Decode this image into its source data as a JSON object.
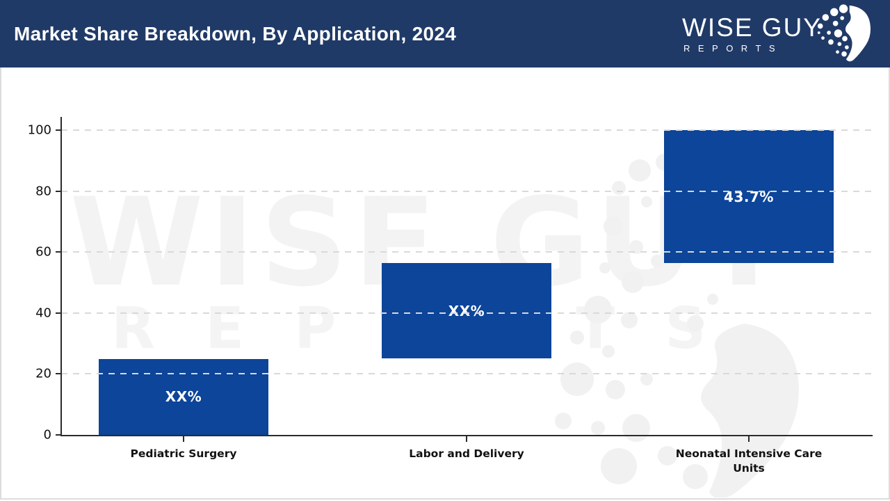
{
  "header": {
    "title": "Market Share Breakdown, By Application, 2024",
    "logo": {
      "line1": "WISE GUY",
      "line2": "REPORTS"
    }
  },
  "watermark": {
    "line1": "WISE GUY",
    "line2": "REPORTS"
  },
  "colors": {
    "header_bg": "#203a68",
    "bar": "#0c4599",
    "grid": "#d9d9d9",
    "axis": "#2b2b2b",
    "bar_label_text": "#ffffff",
    "watermark_text": "#f3f3f3"
  },
  "chart_data": {
    "type": "bar",
    "subtype": "waterfall",
    "title": "Market Share Breakdown, By Application, 2024",
    "categories": [
      "Pediatric Surgery",
      "Labor and Delivery",
      "Neonatal Intensive Care Units"
    ],
    "bars": [
      {
        "category": "Pediatric Surgery",
        "start": 0,
        "end": 25,
        "label": "XX%"
      },
      {
        "category": "Labor and Delivery",
        "start": 25,
        "end": 56.3,
        "label": "XX%"
      },
      {
        "category": "Neonatal Intensive Care Units",
        "start": 56.3,
        "end": 100,
        "label": "43.7%"
      }
    ],
    "yticks": [
      0,
      20,
      40,
      60,
      80,
      100
    ],
    "ylim": [
      0,
      104
    ],
    "xlabel": "",
    "ylabel": "",
    "grid": "horizontal-dashed",
    "legend": "none"
  }
}
